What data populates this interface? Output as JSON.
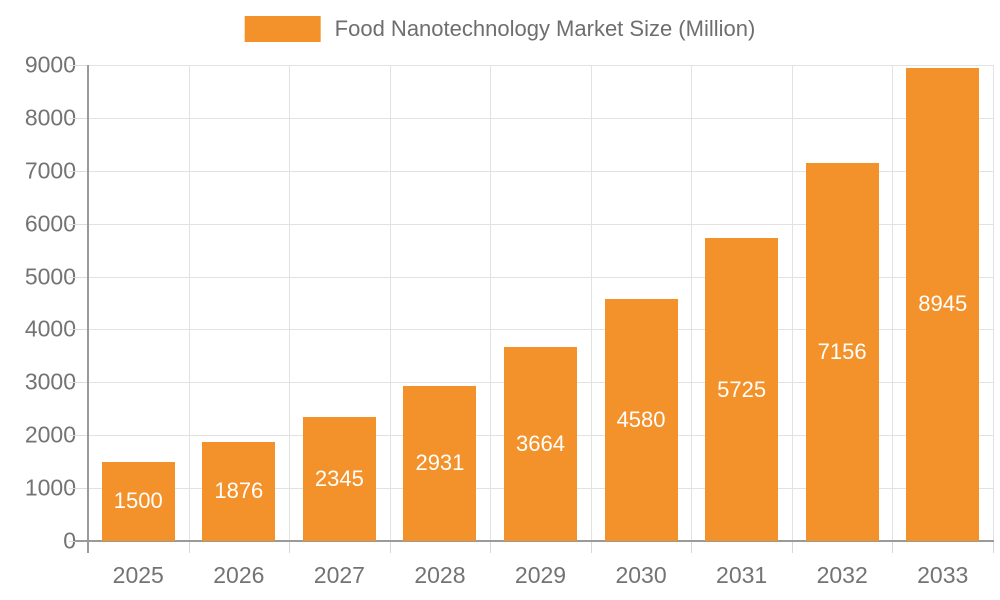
{
  "chart_data": {
    "type": "bar",
    "title": "Food Nanotechnology Market Size (Million)",
    "legend_position": "top",
    "grid": true,
    "categories": [
      "2025",
      "2026",
      "2027",
      "2028",
      "2029",
      "2030",
      "2031",
      "2032",
      "2033"
    ],
    "series": [
      {
        "name": "Food Nanotechnology Market Size (Million)",
        "values": [
          1500,
          1876,
          2345,
          2931,
          3664,
          4580,
          5725,
          7156,
          8945
        ]
      }
    ],
    "xlabel": "",
    "ylabel": "",
    "ylim": [
      0,
      9000
    ],
    "ytick_step": 1000,
    "yticks": [
      0,
      1000,
      2000,
      3000,
      4000,
      5000,
      6000,
      7000,
      8000,
      9000
    ],
    "value_labels_shown": true,
    "colors": {
      "bar": "#F3922B",
      "value_label": "#FFFFFF",
      "axis_text": "#737373",
      "legend_text": "#6E6E6E",
      "axis_line": "#9A9A9A",
      "gridline": "#E2E2E2",
      "background": "#FFFFFF"
    }
  }
}
